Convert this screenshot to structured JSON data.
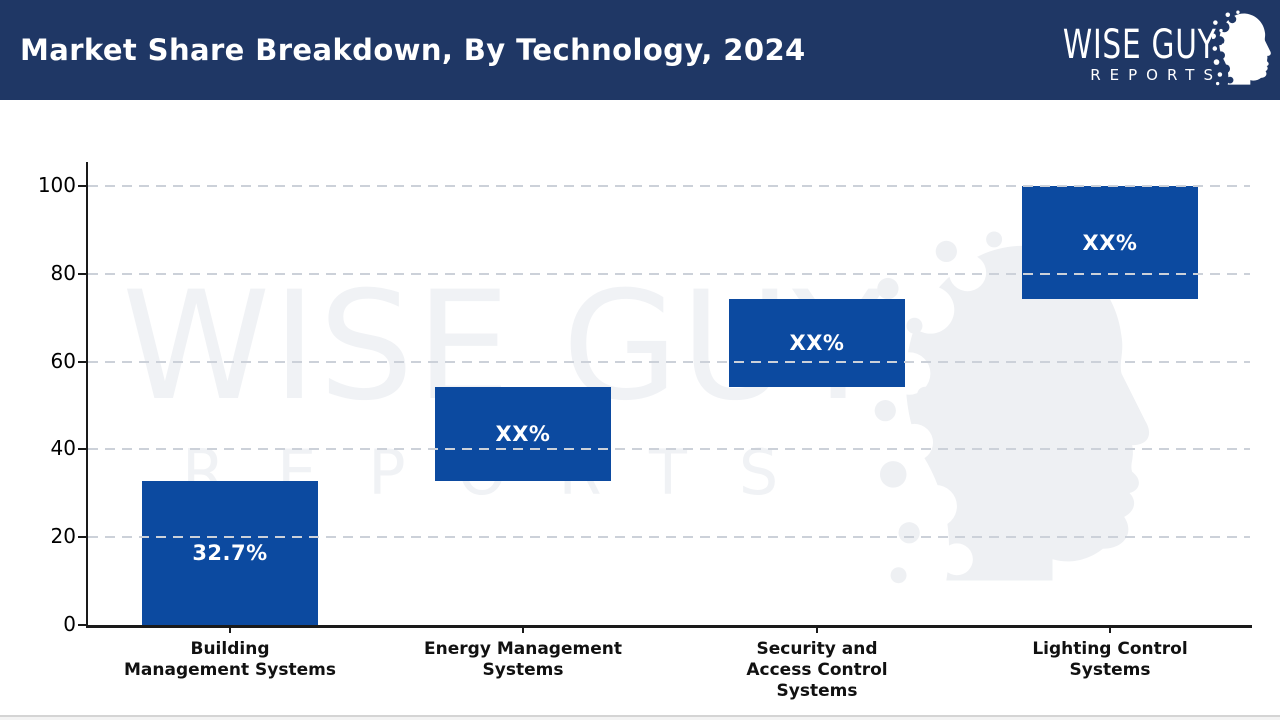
{
  "header": {
    "title": "Market Share Breakdown, By Technology, 2024",
    "logo": {
      "line1": "WISE GUY",
      "line2": "REPORTS"
    }
  },
  "watermark": {
    "line1": "WISE GUY",
    "line2": "REPORTS"
  },
  "colors": {
    "header_bg": "#1f3765",
    "bar": "#0c4aa0",
    "grid": "#ccd1d9",
    "axis": "#1a1a1a",
    "watermark": "#f0f2f5",
    "label_on_bar": "#ffffff"
  },
  "chart_data": {
    "type": "bar",
    "subtype": "waterfall",
    "title": "Market Share Breakdown, By Technology, 2024",
    "categories": [
      "Building Management Systems",
      "Energy Management Systems",
      "Security and Access Control Systems",
      "Lighting Control Systems"
    ],
    "categories_lines": [
      [
        "Building",
        "Management Systems"
      ],
      [
        "Energy Management",
        "Systems"
      ],
      [
        "Security and",
        "Access Control",
        "Systems"
      ],
      [
        "Lighting Control",
        "Systems"
      ]
    ],
    "segments": [
      {
        "label": "32.7%",
        "start": 0,
        "end": 32.7
      },
      {
        "label": "XX%",
        "start": 32.7,
        "end": 54.2
      },
      {
        "label": "XX%",
        "start": 54.2,
        "end": 74.2
      },
      {
        "label": "XX%",
        "end": 100,
        "start": 74.2
      }
    ],
    "xlabel": "",
    "ylabel": "",
    "ylim": [
      0,
      100
    ],
    "yticks": [
      0,
      20,
      40,
      60,
      80,
      100
    ],
    "grid": "dashed-horizontal",
    "legend": "none",
    "bar_color": "#0c4aa0"
  }
}
